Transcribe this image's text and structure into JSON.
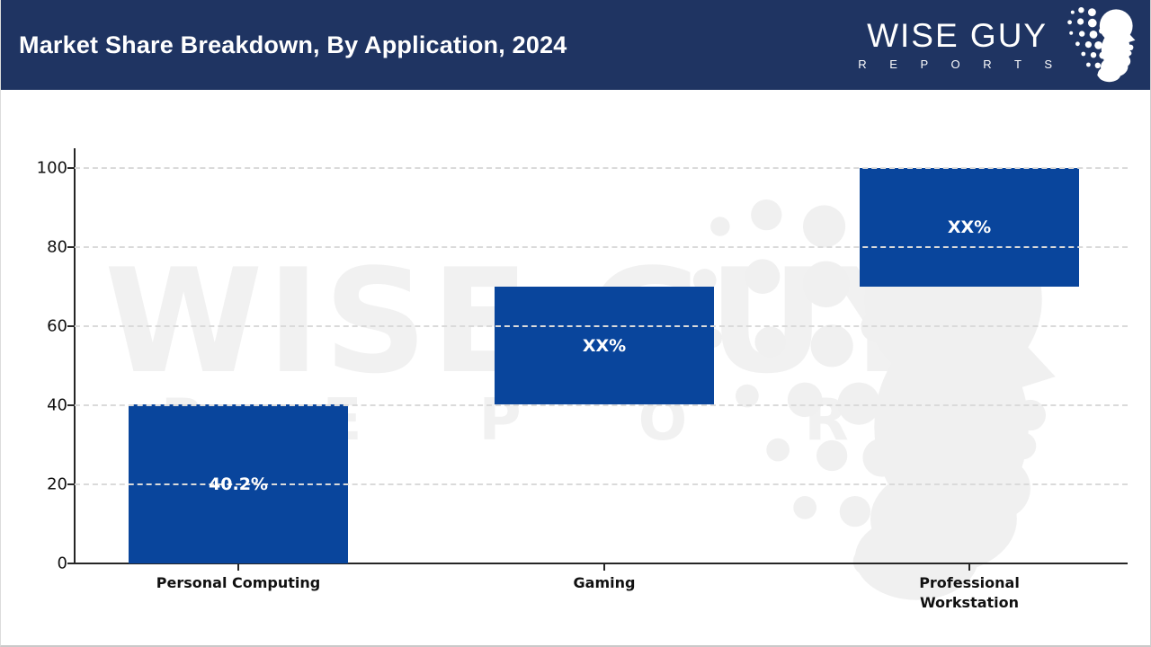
{
  "header": {
    "title": "Market Share Breakdown, By Application, 2024",
    "bg_color": "#1f3462",
    "logo": {
      "line1": "WISE GUY",
      "line2": "R E P O R T S",
      "icon": "face-profile-dots-icon"
    }
  },
  "watermark": {
    "line1": "WISE GUY",
    "line2": "R E P O R T S",
    "color": "#f1f1f1"
  },
  "chart_data": {
    "type": "bar",
    "subtype": "floating-segment-bars",
    "title": "Market Share Breakdown, By Application, 2024",
    "categories": [
      "Personal Computing",
      "Gaming",
      "Professional Workstation"
    ],
    "bars": [
      {
        "category": "Personal Computing",
        "label": "40.2%",
        "start": 0,
        "end": 40.2
      },
      {
        "category": "Gaming",
        "label": "XX%",
        "start": 40.2,
        "end": 70
      },
      {
        "category": "Professional Workstation",
        "label": "XX%",
        "start": 70,
        "end": 100
      }
    ],
    "yticks": [
      0,
      20,
      40,
      60,
      80,
      100
    ],
    "ylim": [
      0,
      100
    ],
    "xlabel": "",
    "ylabel": "",
    "grid": "dashed-horizontal",
    "legend": "none",
    "bar_color": "#09459c",
    "bar_label_color": "#ffffff",
    "grid_color": "#dadada",
    "axis_color": "#262626"
  }
}
